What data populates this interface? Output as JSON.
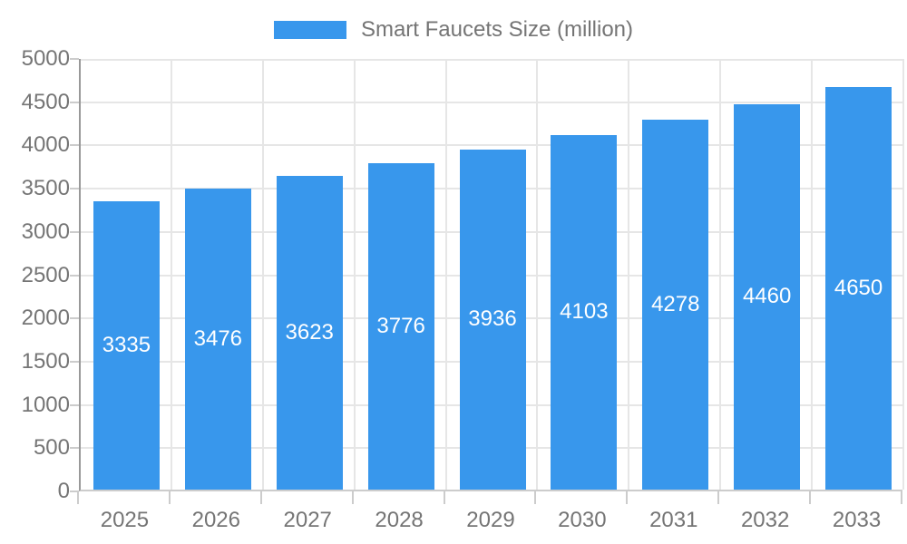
{
  "chart_data": {
    "type": "bar",
    "title": "Smart Faucets Size (million)",
    "categories": [
      "2025",
      "2026",
      "2027",
      "2028",
      "2029",
      "2030",
      "2031",
      "2032",
      "2033"
    ],
    "series": [
      {
        "name": "Smart Faucets Size (million)",
        "values": [
          3335,
          3476,
          3623,
          3776,
          3936,
          4103,
          4278,
          4460,
          4650
        ]
      }
    ],
    "value_labels_shown": true,
    "xlabel": "",
    "ylabel": "",
    "ylim": [
      0,
      5000
    ],
    "yticks": [
      0,
      500,
      1000,
      1500,
      2000,
      2500,
      3000,
      3500,
      4000,
      4500,
      5000
    ],
    "grid": true,
    "legend_position": "top-center",
    "colors": {
      "bar": "#3897EC",
      "value_label": "#ffffff",
      "axis_text": "#757575",
      "grid_line": "#e6e6e6",
      "y_axis_line": "#999999",
      "x_axis_line": "#cccccc",
      "tick": "#cccccc"
    }
  }
}
